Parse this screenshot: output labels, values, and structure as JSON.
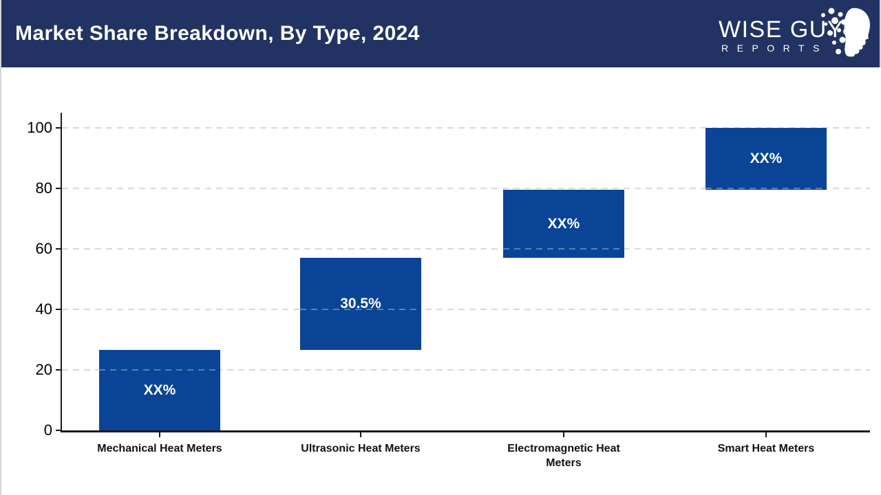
{
  "header": {
    "title": "Market Share Breakdown, By Type, 2024",
    "logo": {
      "line1": "WISE GUY",
      "line2": "REPORTS"
    }
  },
  "watermark": {
    "line1": "WISE GUY",
    "line2": "R E P O R T S"
  },
  "colors": {
    "header_bg": "#223262",
    "bar": "#0a4496",
    "grid": "#d9d9d9",
    "axis": "#1a1a1a",
    "bar_label": "#ffffff",
    "watermark": "#f1f1f1"
  },
  "chart_data": {
    "type": "bar",
    "subtype": "floating-waterfall",
    "title": "Market Share Breakdown, By Type, 2024",
    "categories": [
      "Mechanical Heat Meters",
      "Ultrasonic Heat Meters",
      "Electromagnetic Heat Meters",
      "Smart Heat Meters"
    ],
    "segments": [
      {
        "category": "Mechanical Heat Meters",
        "start": 0,
        "end": 26.5,
        "label": "XX%"
      },
      {
        "category": "Ultrasonic Heat Meters",
        "start": 26.5,
        "end": 57,
        "label": "30.5%",
        "value": 30.5
      },
      {
        "category": "Electromagnetic Heat Meters",
        "start": 57,
        "end": 79.5,
        "label": "XX%"
      },
      {
        "category": "Smart Heat Meters",
        "start": 79.5,
        "end": 100,
        "label": "XX%"
      }
    ],
    "yticks": [
      0,
      20,
      40,
      60,
      80,
      100
    ],
    "ylim": [
      0,
      105
    ],
    "xlabel": "",
    "ylabel": "",
    "grid": "dashed-horizontal",
    "legend": "none"
  }
}
